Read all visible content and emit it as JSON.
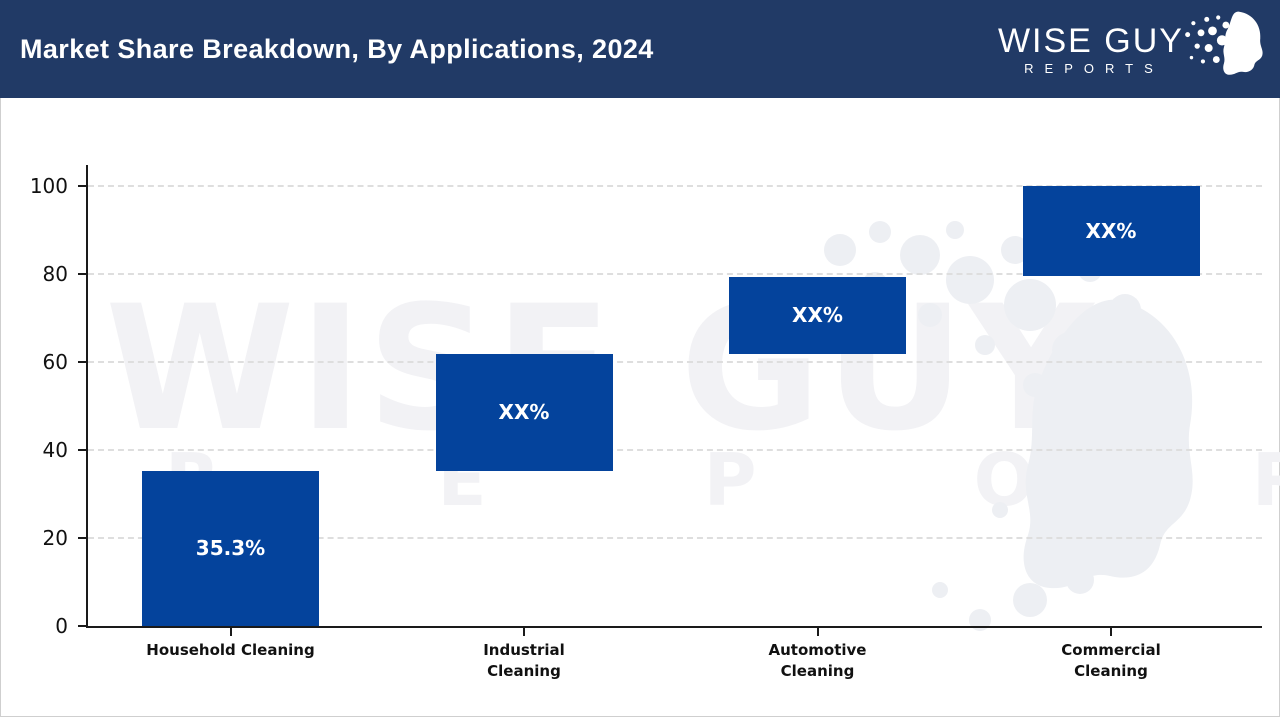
{
  "header": {
    "title": "Market Share Breakdown, By Applications, 2024",
    "logo": {
      "primary": "WISE GUY",
      "secondary": "REPORTS"
    }
  },
  "watermark": {
    "primary": "WISE GUY",
    "secondary": "R E P O R T S"
  },
  "colors": {
    "header_bg": "#213a66",
    "bar": "#04439c",
    "bar_label": "#ffffff",
    "grid": "#dedede",
    "axis": "#1a1a1a",
    "watermark": "#f2f2f5"
  },
  "chart_data": {
    "type": "bar",
    "variant": "waterfall",
    "title": "Market Share Breakdown, By Applications, 2024",
    "xlabel": "",
    "ylabel": "",
    "categories": [
      "Household Cleaning",
      "Industrial Cleaning",
      "Automotive Cleaning",
      "Commercial Cleaning"
    ],
    "category_label_lines": [
      [
        "Household Cleaning"
      ],
      [
        "Industrial",
        "Cleaning"
      ],
      [
        "Automotive",
        "Cleaning"
      ],
      [
        "Commercial",
        "Cleaning"
      ]
    ],
    "segments": [
      {
        "category": "Household Cleaning",
        "start": 0,
        "end": 35.3,
        "label": "35.3%"
      },
      {
        "category": "Industrial Cleaning",
        "start": 35.3,
        "end": 61.8,
        "label": "XX%"
      },
      {
        "category": "Automotive Cleaning",
        "start": 61.8,
        "end": 79.4,
        "label": "XX%"
      },
      {
        "category": "Commercial Cleaning",
        "start": 79.5,
        "end": 100,
        "label": "XX%"
      }
    ],
    "yticks": [
      0,
      20,
      40,
      60,
      80,
      100
    ],
    "ylim": [
      0,
      104.8
    ],
    "grid": {
      "horizontal": true,
      "style": "dashed"
    },
    "legend": "none",
    "bar_color": "#04439c",
    "bar_label_color": "#ffffff"
  }
}
